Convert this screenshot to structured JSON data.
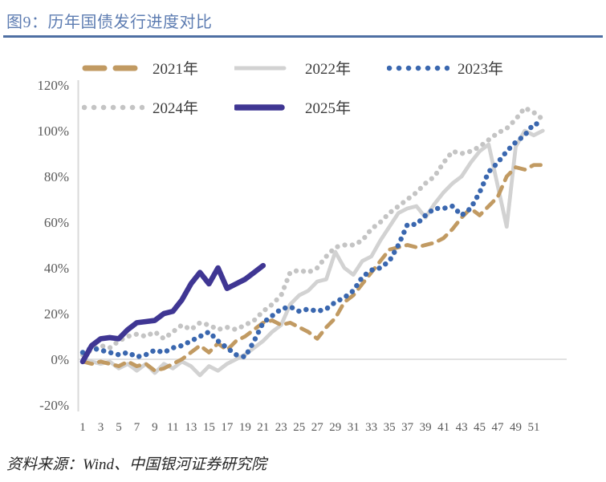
{
  "figure": {
    "title": "图9：历年国债发行进度对比",
    "source_note": "资料来源：Wind、中国银河证券研究院"
  },
  "colors": {
    "title_blue": "#5E7DB2",
    "separator_blue": "#4E6FA3",
    "axis_text": "#595959",
    "gridline": "#D9D9D9",
    "legend_text": "#3B3B3B"
  },
  "chart_data": {
    "type": "line",
    "title": "图9：历年国债发行进度对比",
    "xlabel": "",
    "ylabel": "",
    "x": [
      1,
      2,
      3,
      4,
      5,
      6,
      7,
      8,
      9,
      10,
      11,
      12,
      13,
      14,
      15,
      16,
      17,
      18,
      19,
      20,
      21,
      22,
      23,
      24,
      25,
      26,
      27,
      28,
      29,
      30,
      31,
      32,
      33,
      34,
      35,
      36,
      37,
      38,
      39,
      40,
      41,
      42,
      43,
      44,
      45,
      46,
      47,
      48,
      49,
      50,
      51,
      52
    ],
    "x_axis": {
      "tick_labels": [
        1,
        3,
        5,
        7,
        9,
        11,
        13,
        15,
        17,
        19,
        21,
        23,
        25,
        27,
        29,
        31,
        33,
        35,
        37,
        39,
        41,
        43,
        45,
        47,
        49,
        51
      ]
    },
    "y_axis": {
      "tick_values": [
        120,
        100,
        80,
        60,
        40,
        20,
        0,
        -20
      ],
      "tick_labels": [
        "120%",
        "100%",
        "80%",
        "60%",
        "40%",
        "20%",
        "0%",
        "-20%"
      ],
      "unit": "%"
    },
    "ylim": [
      -20,
      120
    ],
    "grid": "zero-line-only",
    "legend_position": "top-left",
    "legend_rows": [
      [
        "2021年",
        "2022年",
        "2023年"
      ],
      [
        "2024年",
        "2025年"
      ]
    ],
    "draw_order": [
      "2024年",
      "2022年",
      "2021年",
      "2023年",
      "2025年"
    ],
    "series": [
      {
        "name": "2021年",
        "color": "#C19A62",
        "line_style": "dashed",
        "line_width": 4.8,
        "values": [
          -1,
          -2,
          -1,
          -2,
          -3,
          -1,
          -3,
          -2,
          -5,
          -4,
          -2,
          0,
          3,
          6,
          3,
          7,
          4,
          8,
          10,
          13,
          16,
          17,
          15,
          16,
          14,
          12,
          9,
          14,
          18,
          25,
          28,
          33,
          38,
          43,
          48,
          49,
          50,
          49,
          50,
          51,
          53,
          57,
          62,
          66,
          63,
          67,
          71,
          80,
          84,
          83,
          85,
          85
        ]
      },
      {
        "name": "2022年",
        "color": "#D2D2D2",
        "line_style": "solid",
        "line_width": 4.8,
        "values": [
          0,
          -1,
          -2,
          -1,
          -4,
          -2,
          -5,
          -2,
          -6,
          -2,
          -4,
          -1,
          -3,
          -7,
          -3,
          -5,
          -2,
          0,
          2,
          5,
          8,
          12,
          15,
          24,
          28,
          30,
          34,
          35,
          47,
          40,
          37,
          43,
          45,
          52,
          58,
          64,
          66,
          67,
          62,
          68,
          73,
          77,
          80,
          86,
          91,
          94,
          76,
          58,
          93,
          100,
          98,
          100
        ]
      },
      {
        "name": "2023年",
        "color": "#3A67AF",
        "line_style": "dotted",
        "line_width": 6.4,
        "values": [
          3,
          5,
          4,
          3,
          2,
          3,
          1,
          2,
          4,
          3,
          5,
          6,
          8,
          10,
          12,
          8,
          5,
          2,
          1,
          8,
          16,
          19,
          22,
          23,
          21,
          22,
          21,
          22,
          25,
          27,
          30,
          36,
          39,
          40,
          43,
          50,
          59,
          59,
          63,
          66,
          66,
          67,
          63,
          66,
          73,
          82,
          86,
          91,
          95,
          98,
          103,
          103
        ]
      },
      {
        "name": "2024年",
        "color": "#C4C4C4",
        "line_style": "dotted",
        "line_width": 6.2,
        "values": [
          2,
          4,
          6,
          5,
          8,
          10,
          11,
          10,
          12,
          9,
          12,
          15,
          13,
          16,
          15,
          13,
          14,
          13,
          15,
          17,
          21,
          24,
          28,
          38,
          39,
          38,
          40,
          45,
          49,
          50,
          50,
          52,
          57,
          60,
          64,
          67,
          70,
          73,
          77,
          80,
          86,
          91,
          90,
          91,
          93,
          96,
          99,
          101,
          105,
          110,
          108,
          105
        ]
      },
      {
        "name": "2025年",
        "color": "#3F3693",
        "line_style": "solid",
        "line_width": 6.6,
        "values": [
          -1,
          6,
          9,
          9.5,
          9,
          13,
          16,
          16.5,
          17,
          20,
          21,
          26,
          33,
          38,
          33,
          40,
          31,
          33,
          35,
          38,
          41
        ]
      }
    ]
  }
}
